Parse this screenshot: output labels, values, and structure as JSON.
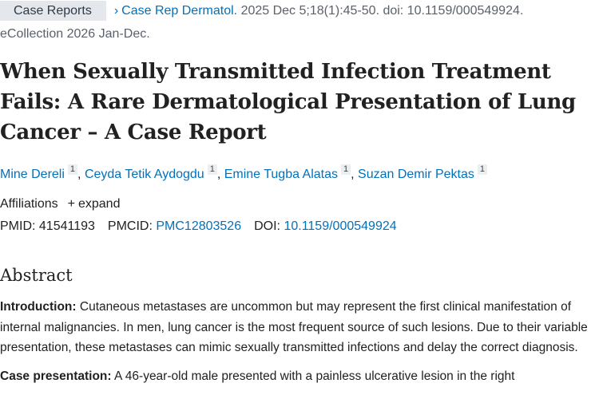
{
  "header": {
    "publication_type": "Case Reports",
    "journal": "Case Rep Dermatol.",
    "citation": "2025 Dec 5;18(1):45-50. doi: 10.1159/000549924.",
    "ecollection": "eCollection 2026 Jan-Dec."
  },
  "title": "When Sexually Transmitted Infection Treatment Fails: A Rare Dermatological Presentation of Lung Cancer – A Case Report",
  "authors": [
    {
      "name": "Mine Dereli",
      "affiliation": "1"
    },
    {
      "name": "Ceyda Tetik Aydogdu",
      "affiliation": "1"
    },
    {
      "name": "Emine Tugba Alatas",
      "affiliation": "1"
    },
    {
      "name": "Suzan Demir Pektas",
      "affiliation": "1"
    }
  ],
  "affiliations": {
    "label": "Affiliations",
    "toggle": "expand"
  },
  "identifiers": [
    {
      "label": "PMID:",
      "value": "41541193"
    },
    {
      "label": "PMCID:",
      "value": "PMC12803526"
    },
    {
      "label": "DOI:",
      "value": "10.1159/000549924"
    }
  ],
  "abstract": {
    "heading": "Abstract",
    "sections": [
      {
        "label": "Introduction:",
        "text": "Cutaneous metastases are uncommon but may represent the first clinical manifestation of internal malignancies. In men, lung cancer is the most frequent source of such lesions. Due to their variable presentation, these metastases can mimic sexually transmitted infections and delay the correct diagnosis."
      },
      {
        "label": "Case presentation:",
        "text": "A 46-year-old male presented with a painless ulcerative lesion in the right"
      }
    ]
  }
}
